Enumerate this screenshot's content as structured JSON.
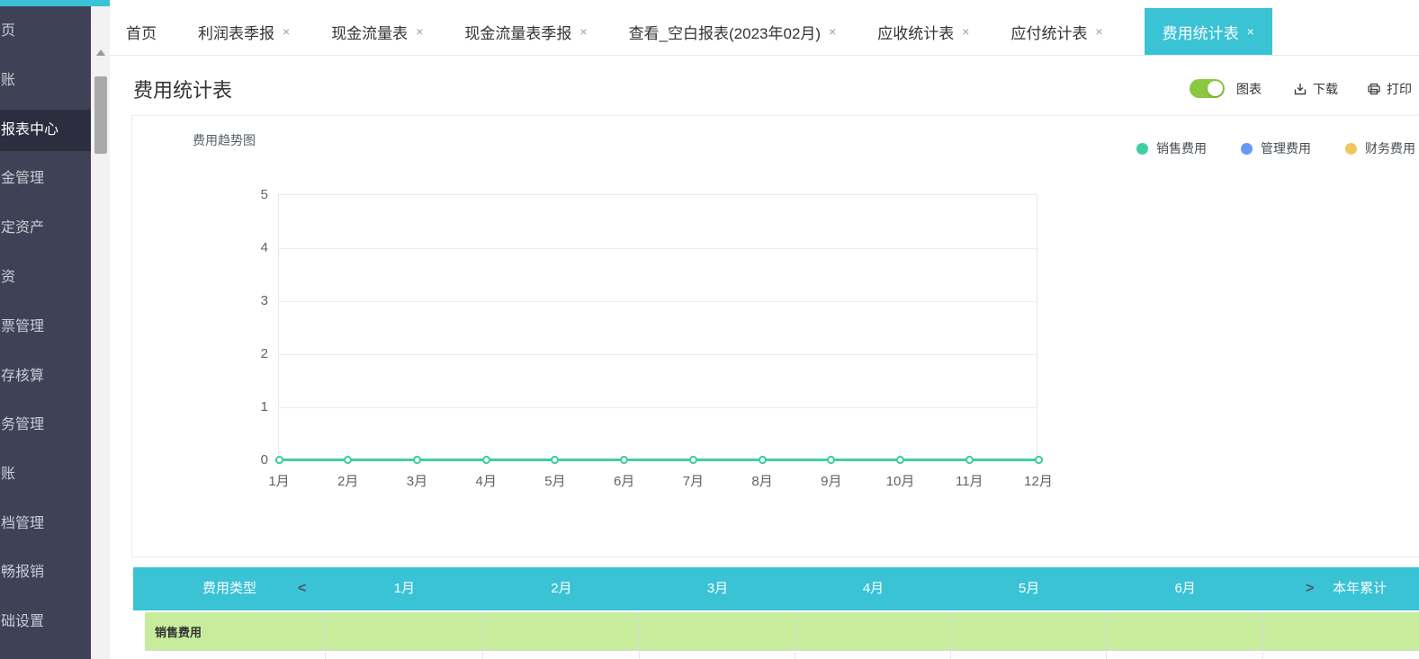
{
  "page": {
    "title": "费用统计表"
  },
  "sidebar": {
    "items": [
      {
        "label": "页",
        "active": false
      },
      {
        "label": "账",
        "active": false
      },
      {
        "label": "报表中心",
        "active": true
      },
      {
        "label": "金管理",
        "active": false
      },
      {
        "label": "定资产",
        "active": false
      },
      {
        "label": "资",
        "active": false
      },
      {
        "label": "票管理",
        "active": false
      },
      {
        "label": "存核算",
        "active": false
      },
      {
        "label": "务管理",
        "active": false
      },
      {
        "label": "账",
        "active": false
      },
      {
        "label": "档管理",
        "active": false
      },
      {
        "label": "畅报销",
        "active": false
      },
      {
        "label": "础设置",
        "active": false
      }
    ]
  },
  "tabs": [
    {
      "label": "首页",
      "closable": false,
      "active": false
    },
    {
      "label": "利润表季报",
      "closable": true,
      "active": false
    },
    {
      "label": "现金流量表",
      "closable": true,
      "active": false
    },
    {
      "label": "现金流量表季报",
      "closable": true,
      "active": false
    },
    {
      "label": "查看_空白报表(2023年02月)",
      "closable": true,
      "active": false
    },
    {
      "label": "应收统计表",
      "closable": true,
      "active": false
    },
    {
      "label": "应付统计表",
      "closable": true,
      "active": false
    },
    {
      "label": "费用统计表",
      "closable": true,
      "active": true
    }
  ],
  "toolbar": {
    "chart_toggle_label": "图表",
    "toggle_on": true,
    "download_label": "下载",
    "print_label": "打印"
  },
  "chart_data": {
    "type": "line",
    "title": "费用趋势图",
    "x": [
      "1月",
      "2月",
      "3月",
      "4月",
      "5月",
      "6月",
      "7月",
      "8月",
      "9月",
      "10月",
      "11月",
      "12月"
    ],
    "series": [
      {
        "name": "销售费用",
        "color": "#3ecfa4",
        "values": [
          0,
          0,
          0,
          0,
          0,
          0,
          0,
          0,
          0,
          0,
          0,
          0
        ]
      },
      {
        "name": "管理费用",
        "color": "#6599f5",
        "values": [
          0,
          0,
          0,
          0,
          0,
          0,
          0,
          0,
          0,
          0,
          0,
          0
        ]
      },
      {
        "name": "财务费用",
        "color": "#f0c75f",
        "values": [
          0,
          0,
          0,
          0,
          0,
          0,
          0,
          0,
          0,
          0,
          0,
          0
        ]
      }
    ],
    "ylim": [
      0,
      5
    ],
    "yticks": [
      0,
      1,
      2,
      3,
      4,
      5
    ],
    "grid": true,
    "legend_position": "top-right"
  },
  "table": {
    "columns": [
      "费用类型",
      "1月",
      "2月",
      "3月",
      "4月",
      "5月",
      "6月",
      "本年累计"
    ],
    "prev_arrow": "<",
    "next_arrow": ">",
    "rows": [
      {
        "name": "销售费用",
        "values": [
          "",
          "",
          "",
          "",
          "",
          "",
          ""
        ]
      }
    ]
  },
  "colors": {
    "accent_cyan": "#3ac2d5",
    "sidebar_bg": "#3f4156",
    "sidebar_active_bg": "#2c2d3e",
    "toggle_green": "#8bc83f",
    "row_green": "#c7ec9c",
    "series_green": "#3ecfa4",
    "series_blue": "#6599f5",
    "series_yellow": "#f0c75f"
  }
}
